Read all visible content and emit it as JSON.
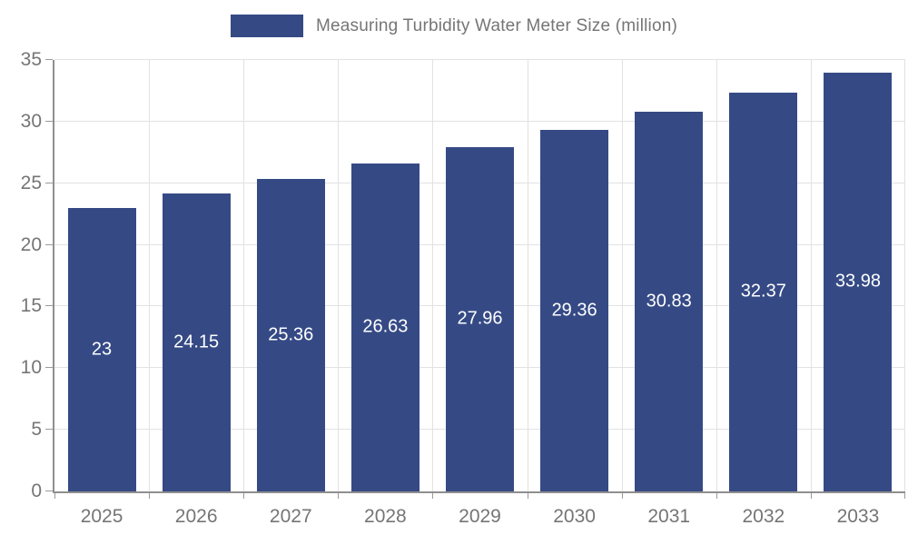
{
  "legend": {
    "label": "Measuring Turbidity Water Meter Size (million)"
  },
  "chart_data": {
    "type": "bar",
    "title": "Measuring Turbidity Water Meter Size (million)",
    "categories": [
      "2025",
      "2026",
      "2027",
      "2028",
      "2029",
      "2030",
      "2031",
      "2032",
      "2033"
    ],
    "values": [
      23,
      24.15,
      25.36,
      26.63,
      27.96,
      29.36,
      30.83,
      32.37,
      33.98
    ],
    "value_labels": [
      "23",
      "24.15",
      "25.36",
      "26.63",
      "27.96",
      "29.36",
      "30.83",
      "32.37",
      "33.98"
    ],
    "xlabel": "",
    "ylabel": "",
    "ylim": [
      0,
      35
    ],
    "ytick_step": 5,
    "ytick_labels": [
      "0",
      "5",
      "10",
      "15",
      "20",
      "25",
      "30",
      "35"
    ],
    "grid": true,
    "legend_position": "top-center",
    "bar_width_fraction": 0.72
  },
  "colors": {
    "bar": "#354a85",
    "value_label": "#ffffff",
    "gridline": "#e2e2e2",
    "axis_line": "#8f8f8f",
    "tick": "#9a9a9a",
    "tick_text": "#757575",
    "legend_text": "#757575",
    "background": "#ffffff"
  }
}
